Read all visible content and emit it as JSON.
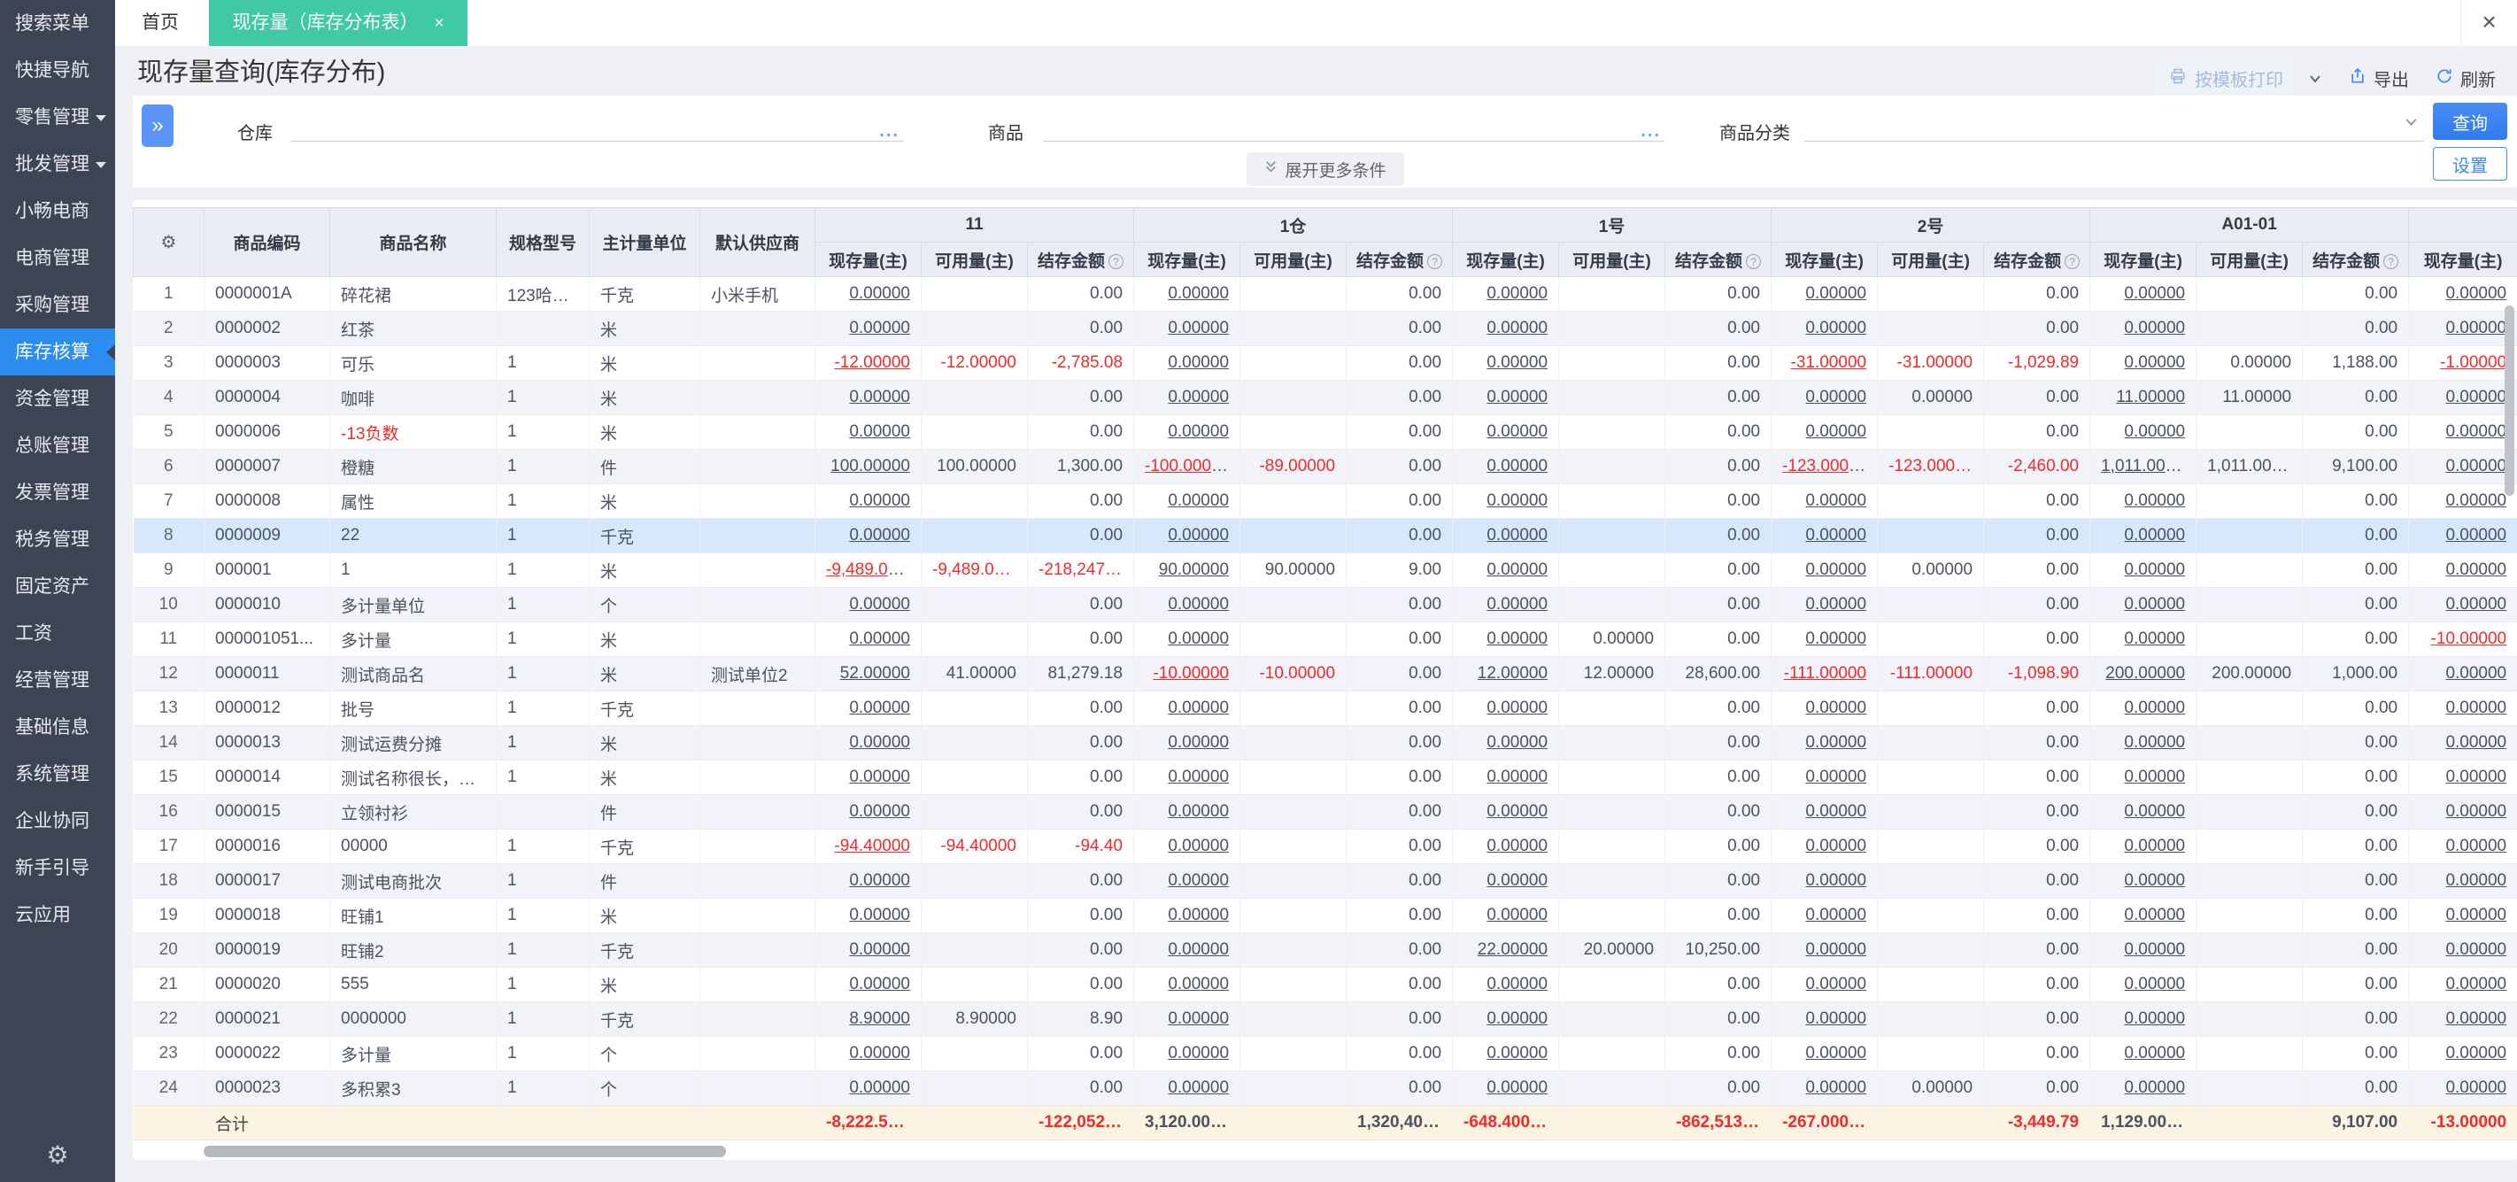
{
  "colors": {
    "accent": "#2d8cf0",
    "tab-active": "#41c9a5",
    "negative": "#f02b2b",
    "sidebar-bg": "#3d4454",
    "sidebar-active": "#2d8cf0",
    "total-bg": "#fcf4e3",
    "row-hl": "#d7e8fc",
    "header-bg": "#e9ecf4"
  },
  "window": {
    "close": "×"
  },
  "tabs": {
    "home": "首页",
    "active_tab": "现存量（库存分布表）",
    "close": "×"
  },
  "sidebar": {
    "items": [
      {
        "label": "搜索菜单"
      },
      {
        "label": "快捷导航"
      },
      {
        "label": "零售管理",
        "arrow": true
      },
      {
        "label": "批发管理",
        "arrow": true
      },
      {
        "label": "小畅电商"
      },
      {
        "label": "电商管理"
      },
      {
        "label": "采购管理"
      },
      {
        "label": "库存核算",
        "active": true
      },
      {
        "label": "资金管理"
      },
      {
        "label": "总账管理"
      },
      {
        "label": "发票管理"
      },
      {
        "label": "税务管理"
      },
      {
        "label": "固定资产"
      },
      {
        "label": "工资"
      },
      {
        "label": "经营管理"
      },
      {
        "label": "基础信息"
      },
      {
        "label": "系统管理"
      },
      {
        "label": "企业协同"
      },
      {
        "label": "新手引导"
      },
      {
        "label": "云应用"
      }
    ]
  },
  "page": {
    "title": "现存量查询(库存分布)"
  },
  "toolbar": {
    "print": "按模板打印",
    "export": "导出",
    "refresh": "刷新"
  },
  "filters": {
    "warehouse_label": "仓库",
    "product_label": "商品",
    "category_label": "商品分类",
    "ellipsis_trigger": "...",
    "query": "查询",
    "settings": "设置",
    "more": "展开更多条件"
  },
  "table": {
    "fixed_headers": [
      "商品编码",
      "商品名称",
      "规格型号",
      "主计量单位",
      "默认供应商"
    ],
    "groups": [
      "11",
      "1仓",
      "1号",
      "2号",
      "A01-01",
      ""
    ],
    "sub_headers": {
      "qty": "现存量(主)",
      "avail": "可用量(主)",
      "amount": "结存金额",
      "amount_help": "?"
    },
    "rows": [
      {
        "no": "1",
        "code": "0000001A",
        "name": "碎花裙",
        "spec": "123哈哈哈...",
        "unit": "千克",
        "supplier": "小米手机",
        "cells": [
          "0.00000",
          "",
          "0.00",
          "0.00000",
          "",
          "0.00",
          "0.00000",
          "",
          "0.00",
          "0.00000",
          "",
          "0.00",
          "0.00000",
          "",
          "0.00",
          "0.00000"
        ]
      },
      {
        "no": "2",
        "code": "0000002",
        "name": "红茶",
        "spec": "",
        "unit": "米",
        "supplier": "",
        "cells": [
          "0.00000",
          "",
          "0.00",
          "0.00000",
          "",
          "0.00",
          "0.00000",
          "",
          "0.00",
          "0.00000",
          "",
          "0.00",
          "0.00000",
          "",
          "0.00",
          "0.00000"
        ]
      },
      {
        "no": "3",
        "code": "0000003",
        "name": "可乐",
        "spec": "1",
        "unit": "米",
        "supplier": "",
        "cells": [
          "-12.00000",
          "-12.00000",
          "-2,785.08",
          "0.00000",
          "",
          "0.00",
          "0.00000",
          "",
          "0.00",
          "-31.00000",
          "-31.00000",
          "-1,029.89",
          "0.00000",
          "0.00000",
          "1,188.00",
          "-1.00000"
        ]
      },
      {
        "no": "4",
        "code": "0000004",
        "name": "咖啡",
        "spec": "1",
        "unit": "米",
        "supplier": "",
        "cells": [
          "0.00000",
          "",
          "0.00",
          "0.00000",
          "",
          "0.00",
          "0.00000",
          "",
          "0.00",
          "0.00000",
          "0.00000",
          "0.00",
          "11.00000",
          "11.00000",
          "0.00",
          "0.00000"
        ]
      },
      {
        "no": "5",
        "code": "0000006",
        "name": "-13负数",
        "spec": "1",
        "unit": "米",
        "supplier": "",
        "cells": [
          "0.00000",
          "",
          "0.00",
          "0.00000",
          "",
          "0.00",
          "0.00000",
          "",
          "0.00",
          "0.00000",
          "",
          "0.00",
          "0.00000",
          "",
          "0.00",
          "0.00000"
        ]
      },
      {
        "no": "6",
        "code": "0000007",
        "name": "橙糖",
        "spec": "1",
        "unit": "件",
        "supplier": "",
        "cells": [
          "100.00000",
          "100.00000",
          "1,300.00",
          "-100.00000",
          "-89.00000",
          "0.00",
          "0.00000",
          "",
          "0.00",
          "-123.00000",
          "-123.00000",
          "-2,460.00",
          "1,011.00000",
          "1,011.00000",
          "9,100.00",
          "0.00000"
        ]
      },
      {
        "no": "7",
        "code": "0000008",
        "name": "属性",
        "spec": "1",
        "unit": "米",
        "supplier": "",
        "cells": [
          "0.00000",
          "",
          "0.00",
          "0.00000",
          "",
          "0.00",
          "0.00000",
          "",
          "0.00",
          "0.00000",
          "",
          "0.00",
          "0.00000",
          "",
          "0.00",
          "0.00000"
        ]
      },
      {
        "no": "8",
        "code": "0000009",
        "name": "22",
        "spec": "1",
        "unit": "千克",
        "supplier": "",
        "highlight": true,
        "cells": [
          "0.00000",
          "",
          "0.00",
          "0.00000",
          "",
          "0.00",
          "0.00000",
          "",
          "0.00",
          "0.00000",
          "",
          "0.00",
          "0.00000",
          "",
          "0.00",
          "0.00000"
        ]
      },
      {
        "no": "9",
        "code": "000001",
        "name": "1",
        "spec": "1",
        "unit": "米",
        "supplier": "",
        "cells": [
          "-9,489.00000",
          "-9,489.000...",
          "-218,247.00",
          "90.00000",
          "90.00000",
          "9.00",
          "0.00000",
          "",
          "0.00",
          "0.00000",
          "0.00000",
          "0.00",
          "0.00000",
          "",
          "0.00",
          "0.00000"
        ]
      },
      {
        "no": "10",
        "code": "0000010",
        "name": "多计量单位",
        "spec": "1",
        "unit": "个",
        "supplier": "",
        "cells": [
          "0.00000",
          "",
          "0.00",
          "0.00000",
          "",
          "0.00",
          "0.00000",
          "",
          "0.00",
          "0.00000",
          "",
          "0.00",
          "0.00000",
          "",
          "0.00",
          "0.00000"
        ]
      },
      {
        "no": "11",
        "code": "000001051...",
        "name": "多计量",
        "spec": "1",
        "unit": "米",
        "supplier": "",
        "cells": [
          "0.00000",
          "",
          "0.00",
          "0.00000",
          "",
          "0.00",
          "0.00000",
          "0.00000",
          "0.00",
          "0.00000",
          "",
          "0.00",
          "0.00000",
          "",
          "0.00",
          "-10.00000"
        ]
      },
      {
        "no": "12",
        "code": "0000011",
        "name": "测试商品名",
        "spec": "1",
        "unit": "米",
        "supplier": "测试单位2",
        "cells": [
          "52.00000",
          "41.00000",
          "81,279.18",
          "-10.00000",
          "-10.00000",
          "0.00",
          "12.00000",
          "12.00000",
          "28,600.00",
          "-111.00000",
          "-111.00000",
          "-1,098.90",
          "200.00000",
          "200.00000",
          "1,000.00",
          "0.00000"
        ]
      },
      {
        "no": "13",
        "code": "0000012",
        "name": "批号",
        "spec": "1",
        "unit": "千克",
        "supplier": "",
        "cells": [
          "0.00000",
          "",
          "0.00",
          "0.00000",
          "",
          "0.00",
          "0.00000",
          "",
          "0.00",
          "0.00000",
          "",
          "0.00",
          "0.00000",
          "",
          "0.00",
          "0.00000"
        ]
      },
      {
        "no": "14",
        "code": "0000013",
        "name": "测试运费分摊",
        "spec": "1",
        "unit": "米",
        "supplier": "",
        "cells": [
          "0.00000",
          "",
          "0.00",
          "0.00000",
          "",
          "0.00",
          "0.00000",
          "",
          "0.00",
          "0.00000",
          "",
          "0.00",
          "0.00000",
          "",
          "0.00",
          "0.00000"
        ]
      },
      {
        "no": "15",
        "code": "0000014",
        "name": "测试名称很长，然后截...",
        "spec": "1",
        "unit": "米",
        "supplier": "",
        "cells": [
          "0.00000",
          "",
          "0.00",
          "0.00000",
          "",
          "0.00",
          "0.00000",
          "",
          "0.00",
          "0.00000",
          "",
          "0.00",
          "0.00000",
          "",
          "0.00",
          "0.00000"
        ]
      },
      {
        "no": "16",
        "code": "0000015",
        "name": "立领衬衫",
        "spec": "",
        "unit": "件",
        "supplier": "",
        "cells": [
          "0.00000",
          "",
          "0.00",
          "0.00000",
          "",
          "0.00",
          "0.00000",
          "",
          "0.00",
          "0.00000",
          "",
          "0.00",
          "0.00000",
          "",
          "0.00",
          "0.00000"
        ]
      },
      {
        "no": "17",
        "code": "0000016",
        "name": "00000",
        "spec": "1",
        "unit": "千克",
        "supplier": "",
        "cells": [
          "-94.40000",
          "-94.40000",
          "-94.40",
          "0.00000",
          "",
          "0.00",
          "0.00000",
          "",
          "0.00",
          "0.00000",
          "",
          "0.00",
          "0.00000",
          "",
          "0.00",
          "0.00000"
        ]
      },
      {
        "no": "18",
        "code": "0000017",
        "name": "测试电商批次",
        "spec": "1",
        "unit": "件",
        "supplier": "",
        "cells": [
          "0.00000",
          "",
          "0.00",
          "0.00000",
          "",
          "0.00",
          "0.00000",
          "",
          "0.00",
          "0.00000",
          "",
          "0.00",
          "0.00000",
          "",
          "0.00",
          "0.00000"
        ]
      },
      {
        "no": "19",
        "code": "0000018",
        "name": "旺铺1",
        "spec": "1",
        "unit": "米",
        "supplier": "",
        "cells": [
          "0.00000",
          "",
          "0.00",
          "0.00000",
          "",
          "0.00",
          "0.00000",
          "",
          "0.00",
          "0.00000",
          "",
          "0.00",
          "0.00000",
          "",
          "0.00",
          "0.00000"
        ]
      },
      {
        "no": "20",
        "code": "0000019",
        "name": "旺铺2",
        "spec": "1",
        "unit": "千克",
        "supplier": "",
        "cells": [
          "0.00000",
          "",
          "0.00",
          "0.00000",
          "",
          "0.00",
          "22.00000",
          "20.00000",
          "10,250.00",
          "0.00000",
          "",
          "0.00",
          "0.00000",
          "",
          "0.00",
          "0.00000"
        ]
      },
      {
        "no": "21",
        "code": "0000020",
        "name": "555",
        "spec": "1",
        "unit": "米",
        "supplier": "",
        "cells": [
          "0.00000",
          "",
          "0.00",
          "0.00000",
          "",
          "0.00",
          "0.00000",
          "",
          "0.00",
          "0.00000",
          "",
          "0.00",
          "0.00000",
          "",
          "0.00",
          "0.00000"
        ]
      },
      {
        "no": "22",
        "code": "0000021",
        "name": "0000000",
        "spec": "1",
        "unit": "千克",
        "supplier": "",
        "cells": [
          "8.90000",
          "8.90000",
          "8.90",
          "0.00000",
          "",
          "0.00",
          "0.00000",
          "",
          "0.00",
          "0.00000",
          "",
          "0.00",
          "0.00000",
          "",
          "0.00",
          "0.00000"
        ]
      },
      {
        "no": "23",
        "code": "0000022",
        "name": "多计量",
        "spec": "1",
        "unit": "个",
        "supplier": "",
        "cells": [
          "0.00000",
          "",
          "0.00",
          "0.00000",
          "",
          "0.00",
          "0.00000",
          "",
          "0.00",
          "0.00000",
          "",
          "0.00",
          "0.00000",
          "",
          "0.00",
          "0.00000"
        ]
      },
      {
        "no": "24",
        "code": "0000023",
        "name": "多积累3",
        "spec": "1",
        "unit": "个",
        "supplier": "",
        "cells": [
          "0.00000",
          "",
          "0.00",
          "0.00000",
          "",
          "0.00",
          "0.00000",
          "",
          "0.00",
          "0.00000",
          "0.00000",
          "0.00",
          "0.00000",
          "",
          "0.00",
          "0.00000"
        ]
      }
    ],
    "total": {
      "label": "合计",
      "cells": [
        "-8,222.50...",
        "",
        "-122,052.62",
        "3,120.00000",
        "",
        "1,320,409...",
        "-648.40000",
        "",
        "-862,513.24",
        "-267.00000",
        "",
        "-3,449.79",
        "1,129.00000",
        "",
        "9,107.00",
        "-13.00000"
      ]
    }
  }
}
